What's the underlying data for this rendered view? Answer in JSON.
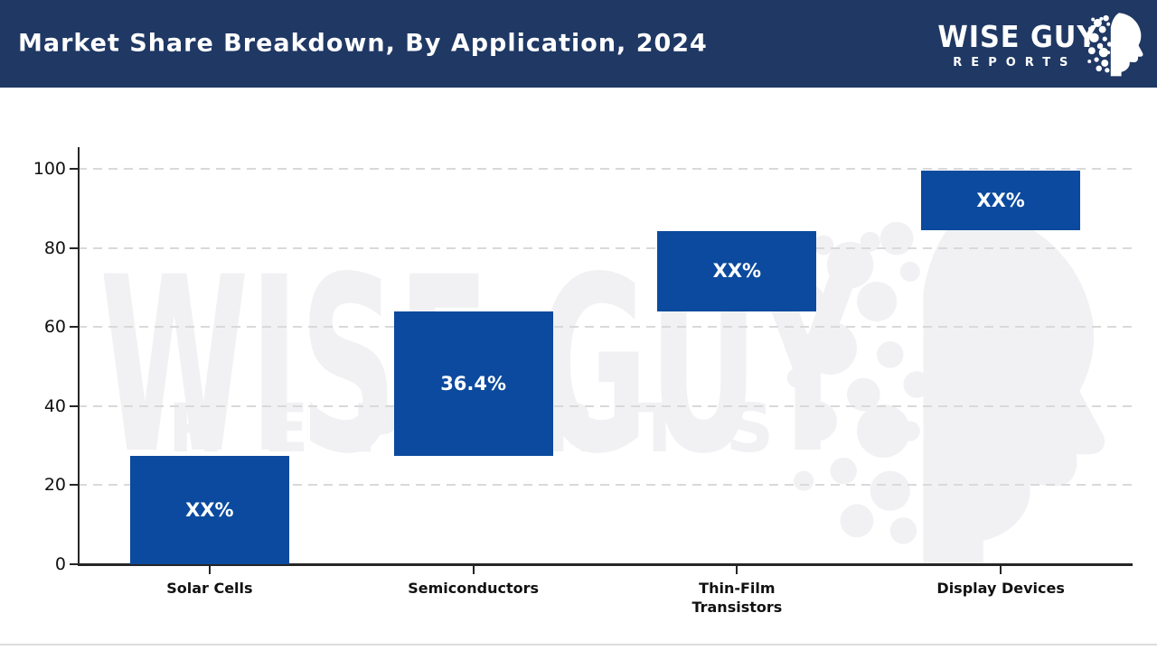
{
  "header": {
    "title": "Market Share Breakdown, By Application, 2024",
    "logo": {
      "wordmark": "WISE GUY",
      "subtitle": "REPORTS"
    }
  },
  "watermark": {
    "line1": "WISE GUY",
    "line2": "REPORTS"
  },
  "theme": {
    "header_bg": "#1f3864",
    "bar_color": "#0b4a9e",
    "bar_label_color": "#ffffff",
    "grid_color": "#d9d9d9",
    "axis_color": "#262626",
    "watermark_color": "#f1f1f4"
  },
  "chart_data": {
    "type": "bar",
    "subtype": "floating-segment-waterfall",
    "title": "Market Share Breakdown, By Application, 2024",
    "xlabel": "",
    "ylabel": "",
    "ylim": [
      0,
      105
    ],
    "yticks": [
      0,
      20,
      40,
      60,
      80,
      100
    ],
    "grid": "dashed-horizontal",
    "legend": false,
    "categories": [
      "Solar Cells",
      "Semiconductors",
      "Thin-Film Transistors",
      "Display Devices"
    ],
    "bars": [
      {
        "category_lines": [
          "Solar Cells"
        ],
        "start": 0,
        "end": 27.3,
        "label": "XX%"
      },
      {
        "category_lines": [
          "Semiconductors"
        ],
        "start": 27.5,
        "end": 63.9,
        "label": "36.4%"
      },
      {
        "category_lines": [
          "Thin-Film",
          "Transistors"
        ],
        "start": 63.9,
        "end": 84.3,
        "label": "XX%"
      },
      {
        "category_lines": [
          "Display Devices"
        ],
        "start": 84.5,
        "end": 99.6,
        "label": "XX%"
      }
    ]
  }
}
